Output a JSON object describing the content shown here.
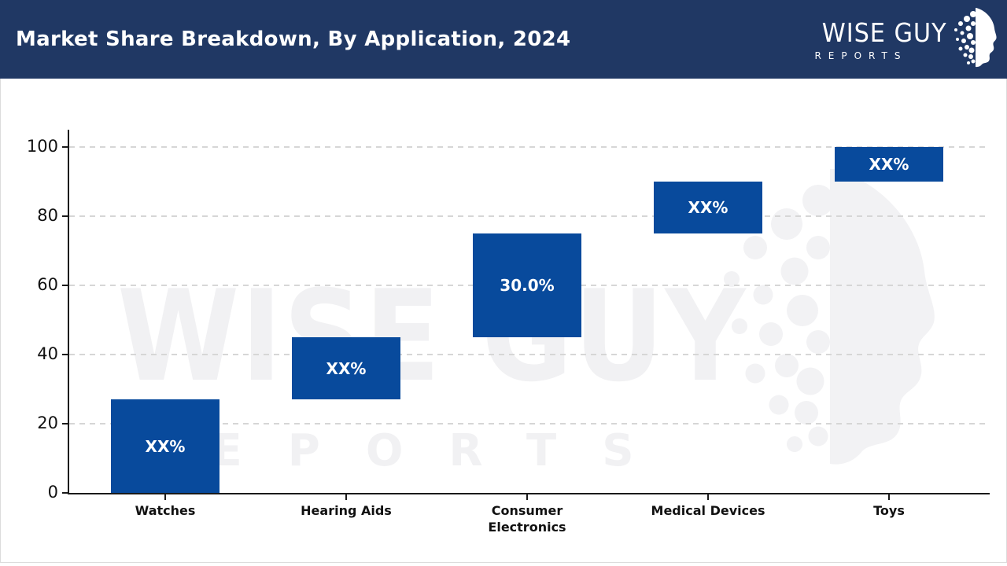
{
  "header": {
    "title": "Market Share Breakdown, By Application, 2024",
    "logo": {
      "wordmark": "WISE GUY",
      "subtext": "REPORTS"
    }
  },
  "watermark": {
    "wordmark": "WISE GUY",
    "subtext": "REPORTS"
  },
  "colors": {
    "header_bg": "#203864",
    "bar": "#084a9c",
    "bar_label": "#ffffff",
    "axis": "#1a1a1a",
    "grid": "#d6d6d6",
    "tick_text": "#111111"
  },
  "chart_data": {
    "type": "bar",
    "subtype": "waterfall",
    "title": "Market Share Breakdown, By Application, 2024",
    "categories": [
      "Watches",
      "Hearing Aids",
      "Consumer Electronics",
      "Medical Devices",
      "Toys"
    ],
    "tick_labels": [
      "Watches",
      "Hearing Aids",
      "Consumer\nElectronics",
      "Medical Devices",
      "Toys"
    ],
    "values": [
      27,
      18,
      30,
      15,
      10
    ],
    "segment_start": [
      0,
      27,
      45,
      75,
      90
    ],
    "segment_end": [
      27,
      45,
      75,
      90,
      100
    ],
    "bar_labels": [
      "XX%",
      "XX%",
      "30.0%",
      "XX%",
      "XX%"
    ],
    "xlabel": "",
    "ylabel": "",
    "ylim": [
      0,
      100
    ],
    "yticks": [
      0,
      20,
      40,
      60,
      80,
      100
    ],
    "grid": "horizontal-dashed",
    "legend": "none"
  }
}
